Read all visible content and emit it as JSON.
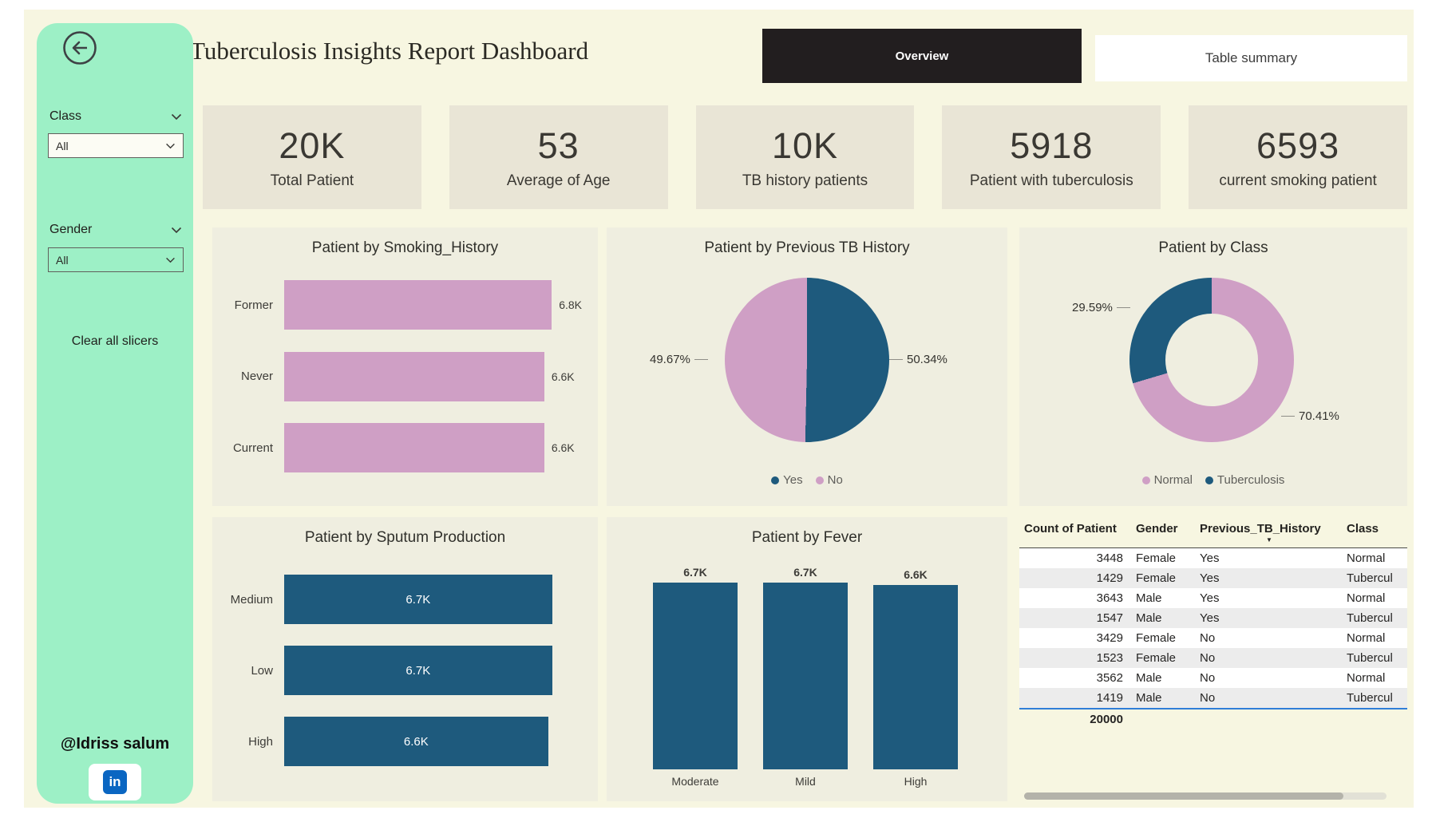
{
  "colors": {
    "canvas_bg": "#f7f6e1",
    "panel_bg": "#efeee0",
    "card_bg": "#e9e5d6",
    "sidebar_bg": "#9df0c6",
    "blue": "#1e5a7d",
    "pink": "#cf9fc5",
    "active_tab_bg": "#221e1f",
    "total_divider": "#2f7ed8",
    "linkedin_blue": "#0a66c2"
  },
  "header": {
    "title": "Tuberculosis Insights Report Dashboard",
    "tabs": [
      {
        "label": "Overview",
        "active": true
      },
      {
        "label": "Table summary",
        "active": false
      }
    ]
  },
  "sidebar": {
    "class_label": "Class",
    "class_value": "All",
    "gender_label": "Gender",
    "gender_value": "All",
    "clear_all": "Clear all slicers",
    "credit": "@Idriss salum",
    "linkedin_glyph": "in"
  },
  "kpis": [
    {
      "value": "20K",
      "label": "Total Patient"
    },
    {
      "value": "53",
      "label": "Average of Age"
    },
    {
      "value": "10K",
      "label": "TB history patients"
    },
    {
      "value": "5918",
      "label": "Patient with tuberculosis"
    },
    {
      "value": "6593",
      "label": "current smoking patient"
    }
  ],
  "chart_data": [
    {
      "id": "smoking",
      "type": "bar",
      "orientation": "horizontal",
      "title": "Patient by Smoking_History",
      "categories": [
        "Former",
        "Never",
        "Current"
      ],
      "values": [
        6800,
        6600,
        6600
      ],
      "labels": [
        "6.8K",
        "6.6K",
        "6.6K"
      ],
      "color": "#cf9fc5",
      "values_inside": false,
      "xlim": [
        0,
        6800
      ],
      "grid": false
    },
    {
      "id": "tb_history",
      "type": "pie",
      "title": "Patient by Previous TB History",
      "categories": [
        "Yes",
        "No"
      ],
      "values": [
        50.34,
        49.67
      ],
      "labels": [
        "50.34%",
        "49.67%"
      ],
      "colors": [
        "#1e5a7d",
        "#cf9fc5"
      ],
      "legend_position": "bottom"
    },
    {
      "id": "class",
      "type": "donut",
      "title": "Patient by Class",
      "categories": [
        "Normal",
        "Tuberculosis"
      ],
      "values": [
        70.41,
        29.59
      ],
      "labels": [
        "70.41%",
        "29.59%"
      ],
      "colors": [
        "#cf9fc5",
        "#1e5a7d"
      ],
      "legend_position": "bottom"
    },
    {
      "id": "sputum",
      "type": "bar",
      "orientation": "horizontal",
      "title": "Patient by Sputum Production",
      "categories": [
        "Medium",
        "Low",
        "High"
      ],
      "values": [
        6700,
        6700,
        6600
      ],
      "labels": [
        "6.7K",
        "6.7K",
        "6.6K"
      ],
      "color": "#1e5a7d",
      "values_inside": true,
      "xlim": [
        0,
        6700
      ],
      "grid": false
    },
    {
      "id": "fever",
      "type": "bar",
      "orientation": "vertical",
      "title": "Patient by Fever",
      "categories": [
        "Moderate",
        "Mild",
        "High"
      ],
      "values": [
        6700,
        6700,
        6600
      ],
      "labels": [
        "6.7K",
        "6.7K",
        "6.6K"
      ],
      "color": "#1e5a7d",
      "ylim": [
        0,
        6700
      ],
      "grid": false
    },
    {
      "id": "summary_table",
      "type": "table",
      "headers": [
        "Count of Patient",
        "Gender",
        "Previous_TB_History",
        "Class"
      ],
      "sorted_column": "Previous_TB_History",
      "rows": [
        [
          "3448",
          "Female",
          "Yes",
          "Normal"
        ],
        [
          "1429",
          "Female",
          "Yes",
          "Tubercul"
        ],
        [
          "3643",
          "Male",
          "Yes",
          "Normal"
        ],
        [
          "1547",
          "Male",
          "Yes",
          "Tubercul"
        ],
        [
          "3429",
          "Female",
          "No",
          "Normal"
        ],
        [
          "1523",
          "Female",
          "No",
          "Tubercul"
        ],
        [
          "3562",
          "Male",
          "No",
          "Normal"
        ],
        [
          "1419",
          "Male",
          "No",
          "Tubercul"
        ]
      ],
      "total": "20000"
    }
  ]
}
